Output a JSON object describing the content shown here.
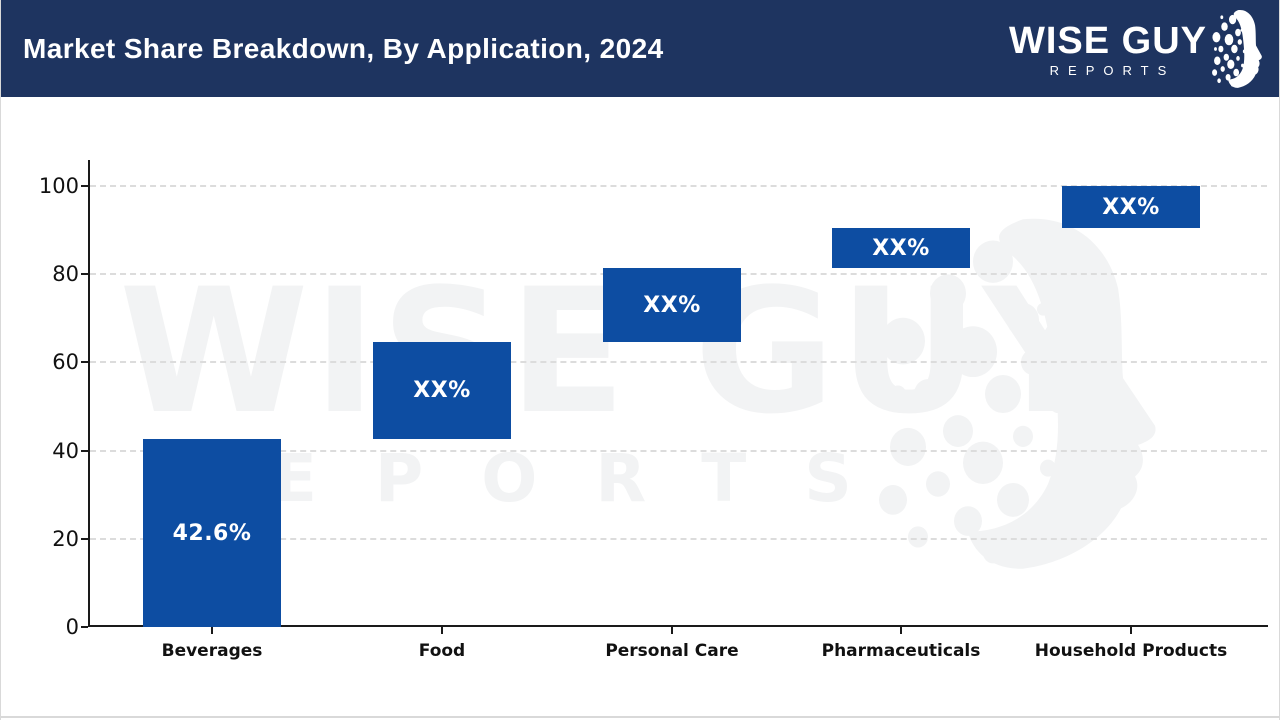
{
  "header": {
    "title": "Market Share Breakdown, By Application, 2024",
    "logo": {
      "line1": "WISE GUY",
      "line2": "REPORTS"
    }
  },
  "watermark": {
    "line1": "WISE GUY",
    "line2": "REPORTS"
  },
  "colors": {
    "header_bg": "#1e3460",
    "bar": "#0d4da2",
    "bar_label": "#ffffff",
    "grid": "#dcdcdc",
    "axis_text": "#111111",
    "watermark": "#f2f3f4"
  },
  "chart_data": {
    "type": "bar",
    "subtype": "waterfall",
    "title": "Market Share Breakdown, By Application, 2024",
    "xlabel": "",
    "ylabel": "",
    "ylim": [
      0,
      100
    ],
    "yticks": [
      0,
      20,
      40,
      60,
      80,
      100
    ],
    "grid": "horizontal dashed",
    "legend": "none",
    "categories": [
      "Beverages",
      "Food",
      "Personal Care",
      "Pharmaceuticals",
      "Household Products"
    ],
    "segments": [
      {
        "category": "Beverages",
        "start": 0,
        "end": 42.6,
        "label": "42.6%"
      },
      {
        "category": "Food",
        "start": 42.6,
        "end": 64.7,
        "label": "XX%"
      },
      {
        "category": "Personal Care",
        "start": 64.7,
        "end": 81.3,
        "label": "XX%"
      },
      {
        "category": "Pharmaceuticals",
        "start": 81.3,
        "end": 90.4,
        "label": "XX%"
      },
      {
        "category": "Household Products",
        "start": 90.4,
        "end": 100,
        "label": "XX%"
      }
    ]
  }
}
